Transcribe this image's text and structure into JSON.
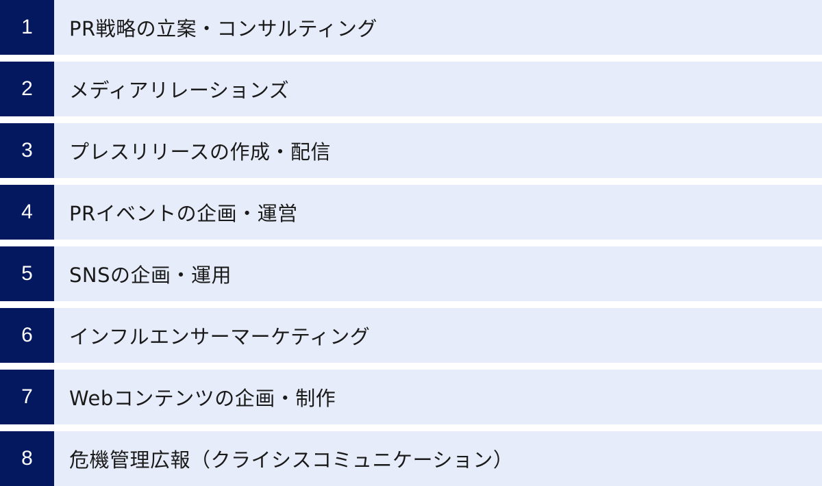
{
  "colors": {
    "number_bg": "#03185f",
    "row_bg": "#e6ecf9",
    "text": "#1a1a1a"
  },
  "items": [
    {
      "number": "1",
      "label": "PR戦略の立案・コンサルティング"
    },
    {
      "number": "2",
      "label": "メディアリレーションズ"
    },
    {
      "number": "3",
      "label": "プレスリリースの作成・配信"
    },
    {
      "number": "4",
      "label": "PRイベントの企画・運営"
    },
    {
      "number": "5",
      "label": "SNSの企画・運用"
    },
    {
      "number": "6",
      "label": "インフルエンサーマーケティング"
    },
    {
      "number": "7",
      "label": "Webコンテンツの企画・制作"
    },
    {
      "number": "8",
      "label": "危機管理広報（クライシスコミュニケーション）"
    }
  ]
}
